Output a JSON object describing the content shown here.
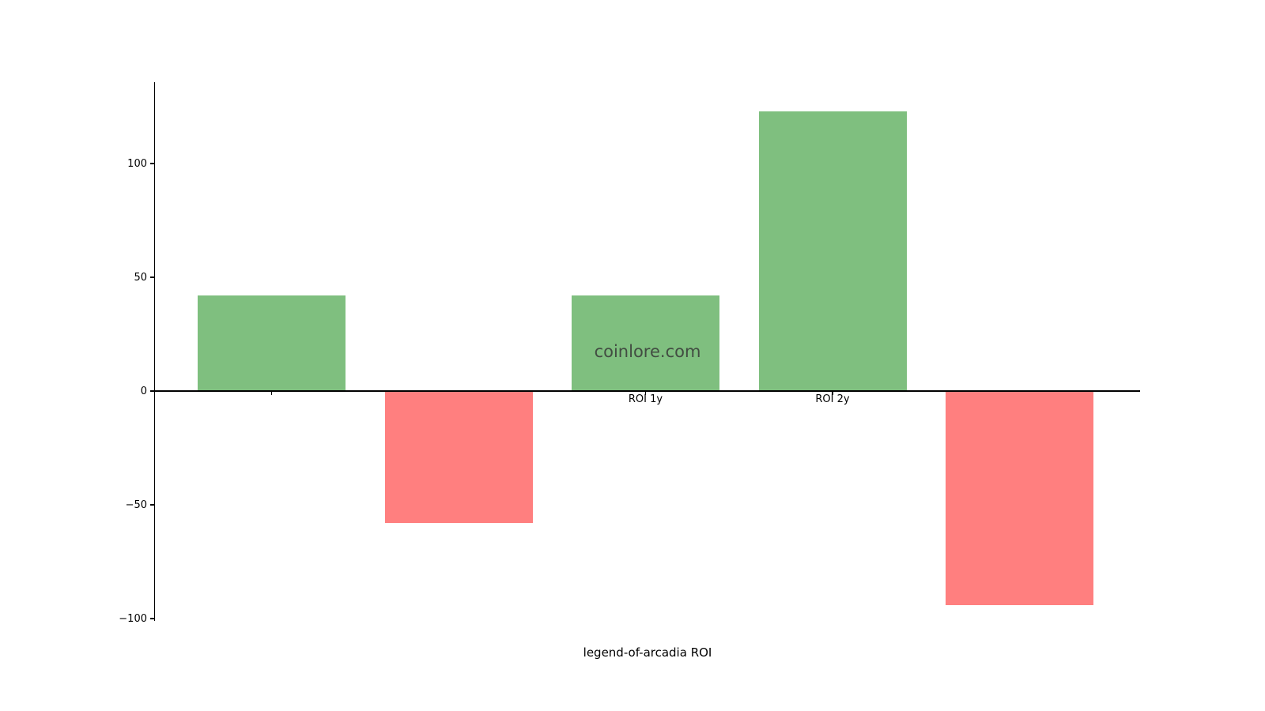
{
  "page": {
    "background_color": "#ffffff"
  },
  "chart_data": {
    "type": "bar",
    "title": "",
    "xlabel": "legend-of-arcadia ROI",
    "ylabel": "",
    "watermark": "coinlore.com",
    "categories": [
      "",
      "",
      "ROI 1y",
      "ROI 2y",
      ""
    ],
    "values": [
      42,
      -58,
      42,
      123,
      -94
    ],
    "positive_color": "#7fbf7f",
    "negative_color": "#ff7f7f",
    "axis_color": "#000000",
    "yticks": [
      100,
      50,
      0,
      -50,
      -100
    ],
    "ylim": [
      -101,
      136
    ],
    "grid": false,
    "legend": "none"
  }
}
